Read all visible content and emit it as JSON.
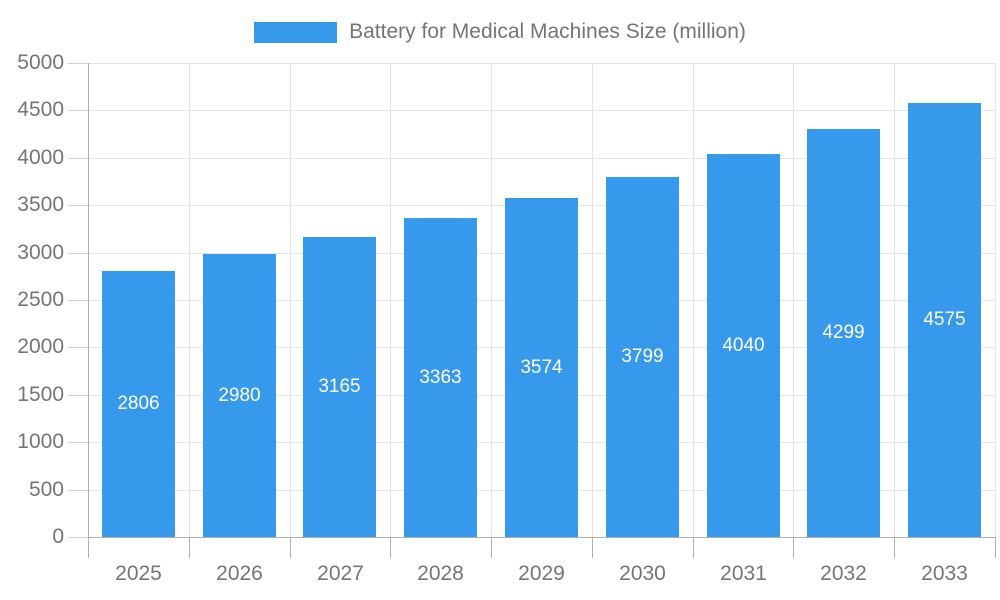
{
  "chart_data": {
    "type": "bar",
    "title": "Battery for Medical Machines Size (million)",
    "legend": {
      "position": "top",
      "label": "Battery for Medical Machines Size (million)"
    },
    "categories": [
      "2025",
      "2026",
      "2027",
      "2028",
      "2029",
      "2030",
      "2031",
      "2032",
      "2033"
    ],
    "values": [
      2806,
      2980,
      3165,
      3363,
      3574,
      3799,
      4040,
      4299,
      4575
    ],
    "value_labels_shown": true,
    "xlabel": "",
    "ylabel": "",
    "ylim": [
      0,
      5000
    ],
    "ytick_step": 500,
    "grid": true,
    "colors": {
      "bar": "#3799EC",
      "value_label": "#FFFFFF",
      "axis_text": "#757575",
      "legend_text": "#757575",
      "grid_line": "#E4E4E4",
      "tick_stub": "#D0D0D0",
      "axis_line": "#B0B0B0",
      "background": "#FFFFFF"
    }
  }
}
